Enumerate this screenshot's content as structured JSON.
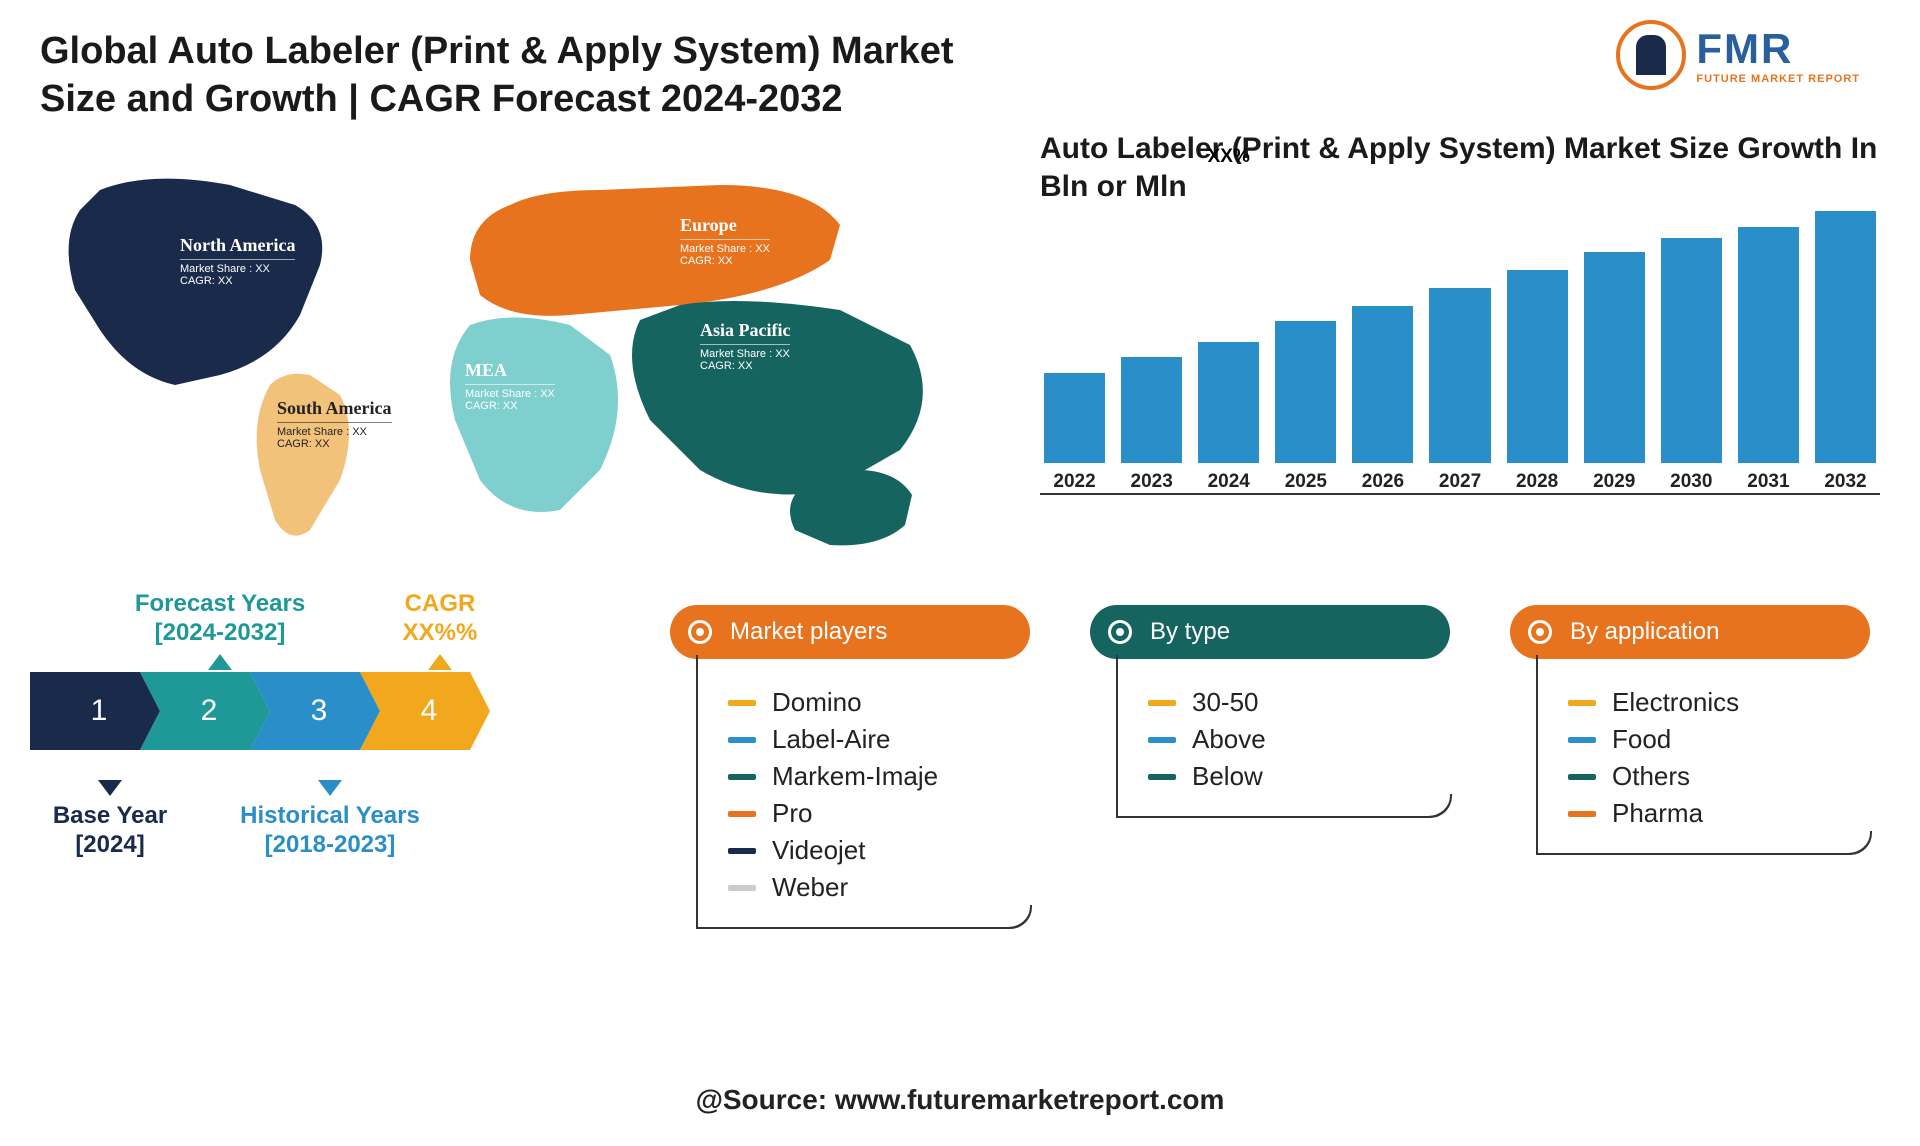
{
  "title": "Global Auto Labeler (Print & Apply System) Market Size and Growth | CAGR Forecast 2024-2032",
  "logo": {
    "main": "FMR",
    "sub": "FUTURE MARKET REPORT"
  },
  "colors": {
    "navy": "#1a2a4a",
    "teal": "#1f9898",
    "teal_light": "#7fcfcf",
    "orange": "#e8731f",
    "blue": "#2a8fc9",
    "yellow": "#f2a81d",
    "dark_teal": "#16645f"
  },
  "map": {
    "regions": [
      {
        "key": "na",
        "name": "North America",
        "share": "Market Share : XX",
        "cagr": "CAGR: XX",
        "fill": "#1a2a4a"
      },
      {
        "key": "sa",
        "name": "South America",
        "share": "Market Share : XX",
        "cagr": "CAGR: XX",
        "fill": "#f2c27b"
      },
      {
        "key": "eu",
        "name": "Europe",
        "share": "Market Share : XX",
        "cagr": "CAGR: XX",
        "fill": "#e8731f"
      },
      {
        "key": "mea",
        "name": "MEA",
        "share": "Market Share : XX",
        "cagr": "CAGR: XX",
        "fill": "#7fcfcf"
      },
      {
        "key": "ap",
        "name": "Asia Pacific",
        "share": "Market Share : XX",
        "cagr": "CAGR: XX",
        "fill": "#16645f"
      }
    ]
  },
  "chart": {
    "title": "Auto Labeler (Print & Apply System) Market Size Growth In\nBln or Mln",
    "title_fontsize": 30,
    "years": [
      "2022",
      "2023",
      "2024",
      "2025",
      "2026",
      "2027",
      "2028",
      "2029",
      "2030",
      "2031",
      "2032"
    ],
    "values": [
      100,
      118,
      135,
      158,
      175,
      195,
      215,
      235,
      250,
      262,
      280
    ],
    "ylim": [
      0,
      300
    ],
    "bar_color": "#2a8fc9",
    "annotations": [
      {
        "index": 2,
        "text": "XX%",
        "dy": -26
      },
      {
        "index": 10,
        "text": "XX%",
        "dy": -26
      }
    ],
    "label_fontsize": 19,
    "axis_color": "#333333"
  },
  "timeline": {
    "steps": [
      {
        "n": "1",
        "fill": "#1a2a4a",
        "label": "Base Year\n[2024]",
        "pos": "below",
        "label_color": "#1a2a4a"
      },
      {
        "n": "2",
        "fill": "#1f9898",
        "label": "Forecast Years\n[2024-2032]",
        "pos": "above",
        "label_color": "#1f9898"
      },
      {
        "n": "3",
        "fill": "#2a8fc9",
        "label": "Historical Years\n[2018-2023]",
        "pos": "below",
        "label_color": "#2a8fc9"
      },
      {
        "n": "4",
        "fill": "#f2a81d",
        "label": "CAGR\nXX%%",
        "pos": "above",
        "label_color": "#f2a81d"
      }
    ]
  },
  "segments": [
    {
      "title": "Market players",
      "pill_color": "#e8731f",
      "items": [
        {
          "label": "Domino",
          "color": "#f2a81d"
        },
        {
          "label": "Label-Aire",
          "color": "#2a8fc9"
        },
        {
          "label": "Markem-Imaje",
          "color": "#16645f"
        },
        {
          "label": "Pro",
          "color": "#e8731f"
        },
        {
          "label": "Videojet",
          "color": "#1a2a4a"
        },
        {
          "label": "Weber",
          "color": "#cccccc"
        }
      ]
    },
    {
      "title": "By type",
      "pill_color": "#16645f",
      "items": [
        {
          "label": "30-50",
          "color": "#f2a81d"
        },
        {
          "label": "Above",
          "color": "#2a8fc9"
        },
        {
          "label": "Below",
          "color": "#16645f"
        }
      ]
    },
    {
      "title": "By application",
      "pill_color": "#e8731f",
      "items": [
        {
          "label": "Electronics",
          "color": "#f2a81d"
        },
        {
          "label": "Food",
          "color": "#2a8fc9"
        },
        {
          "label": "Others",
          "color": "#16645f"
        },
        {
          "label": "Pharma",
          "color": "#e8731f"
        }
      ]
    }
  ],
  "source": "@Source: www.futuremarketreport.com"
}
